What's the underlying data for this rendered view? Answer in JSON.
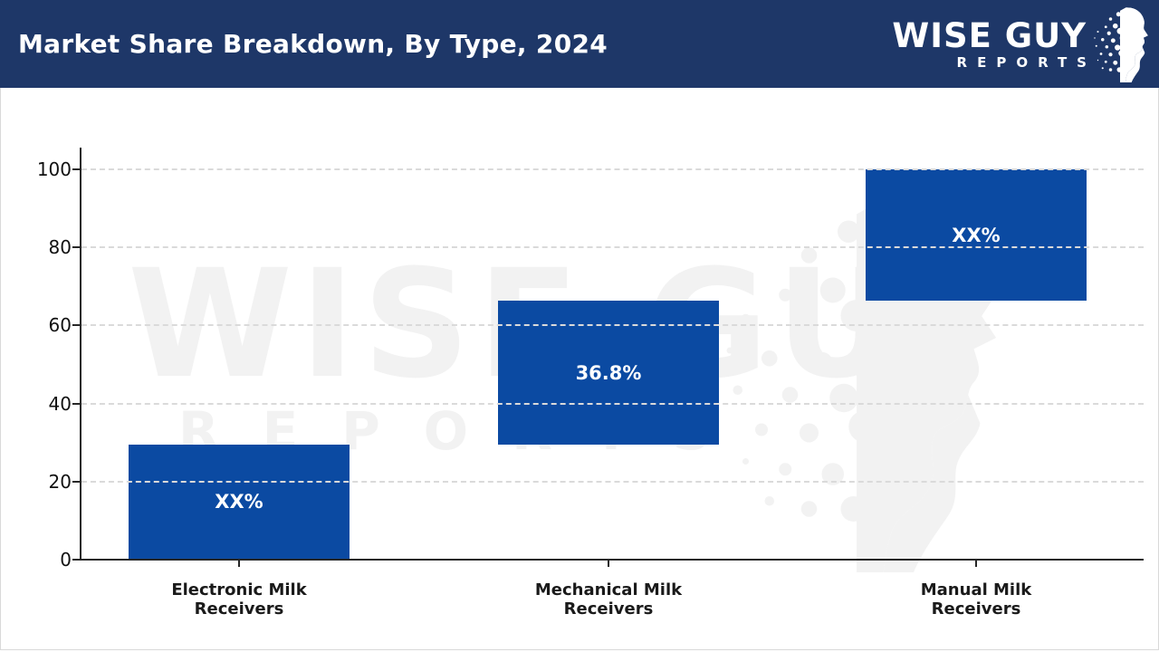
{
  "header": {
    "title": "Market Share Breakdown, By Type, 2024",
    "logo": {
      "brand_line1": "WISE GUY",
      "brand_line2": "REPORTS"
    }
  },
  "watermark": {
    "line1": "WISE GUY",
    "line2": "REPORTS"
  },
  "colors": {
    "header_bg": "#1e3768",
    "bar": "#0b4aa2",
    "grid": "#dadada",
    "axis": "#262626",
    "watermark": "#f2f2f2"
  },
  "chart_data": {
    "type": "bar",
    "subtype": "waterfall",
    "title": "Market Share Breakdown, By Type, 2024",
    "xlabel": "",
    "ylabel": "",
    "ylim": [
      0,
      100
    ],
    "yticks": [
      0,
      20,
      40,
      60,
      80,
      100
    ],
    "grid": "horizontal-dashed",
    "legend": "none",
    "categories": [
      "Electronic Milk Receivers",
      "Mechanical Milk Receivers",
      "Manual Milk Receivers"
    ],
    "category_lines": [
      [
        "Electronic Milk",
        "Receivers"
      ],
      [
        "Mechanical Milk",
        "Receivers"
      ],
      [
        "Manual Milk",
        "Receivers"
      ]
    ],
    "segments": [
      {
        "category": "Electronic Milk Receivers",
        "start": 0,
        "end": 29.5,
        "label": "XX%"
      },
      {
        "category": "Mechanical Milk Receivers",
        "start": 29.5,
        "end": 66.3,
        "label": "36.8%"
      },
      {
        "category": "Manual Milk Receivers",
        "start": 66.3,
        "end": 100,
        "label": "XX%"
      }
    ]
  }
}
